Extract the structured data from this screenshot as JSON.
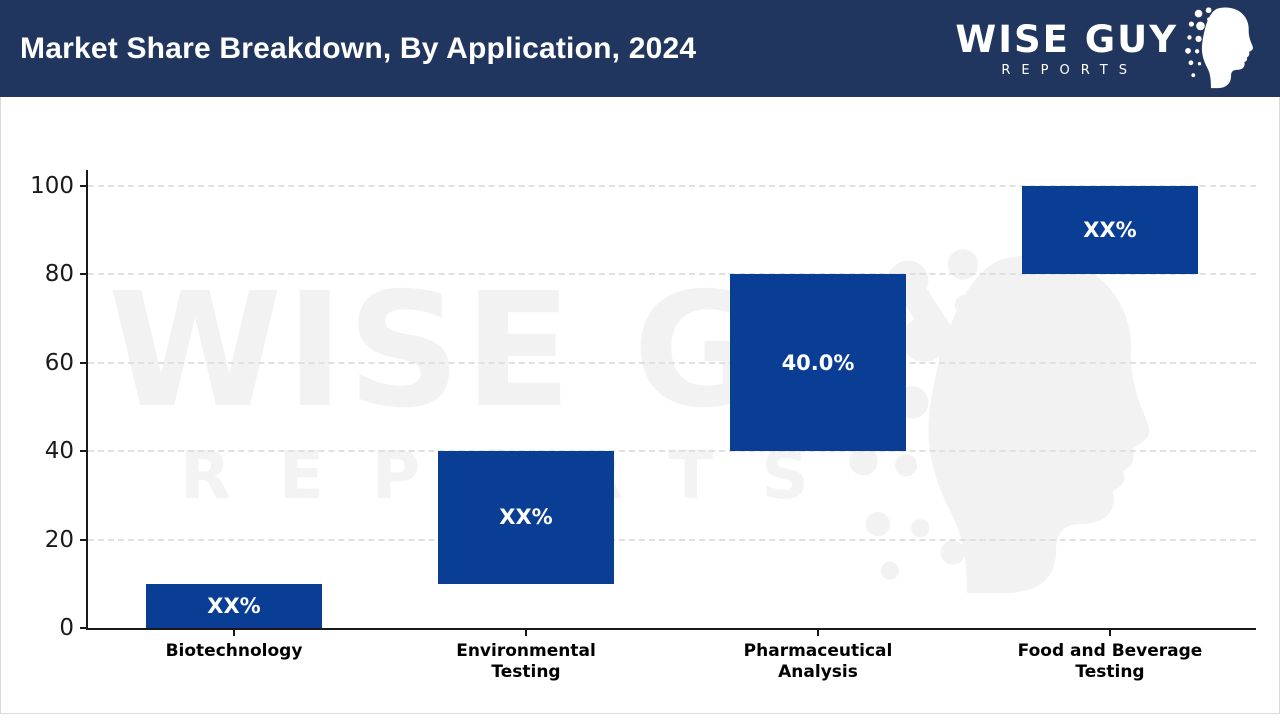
{
  "header": {
    "title": "Market Share Breakdown, By Application, 2024",
    "logo_line1": "WISE GUY",
    "logo_line2": "REPORTS"
  },
  "watermark": {
    "line1": "WISE GUY",
    "line2": "REPORTS"
  },
  "colors": {
    "header_bg": "#21365f",
    "bar": "#0a3e94",
    "grid": "#e0e0e0",
    "axis": "#1a1a1a",
    "watermark": "#f2f2f2",
    "frame_border": "#d9d9d9",
    "bar_label_text": "#ffffff"
  },
  "chart_data": {
    "type": "bar",
    "subtype": "floating-waterfall",
    "title": "Market Share Breakdown, By Application, 2024",
    "categories": [
      "Biotechnology",
      "Environmental\nTesting",
      "Pharmaceutical\nAnalysis",
      "Food and Beverage\nTesting"
    ],
    "bars": [
      {
        "category": "Biotechnology",
        "start": 0,
        "end": 10,
        "label": "XX%"
      },
      {
        "category": "Environmental Testing",
        "start": 10,
        "end": 40,
        "label": "XX%"
      },
      {
        "category": "Pharmaceutical Analysis",
        "start": 40,
        "end": 80,
        "label": "40.0%"
      },
      {
        "category": "Food and Beverage Testing",
        "start": 80,
        "end": 100,
        "label": "XX%"
      }
    ],
    "ylim": [
      0,
      100
    ],
    "yticks": [
      0,
      20,
      40,
      60,
      80,
      100
    ],
    "xlabel": "",
    "ylabel": "",
    "grid": "horizontal-dashed",
    "legend": "none"
  }
}
